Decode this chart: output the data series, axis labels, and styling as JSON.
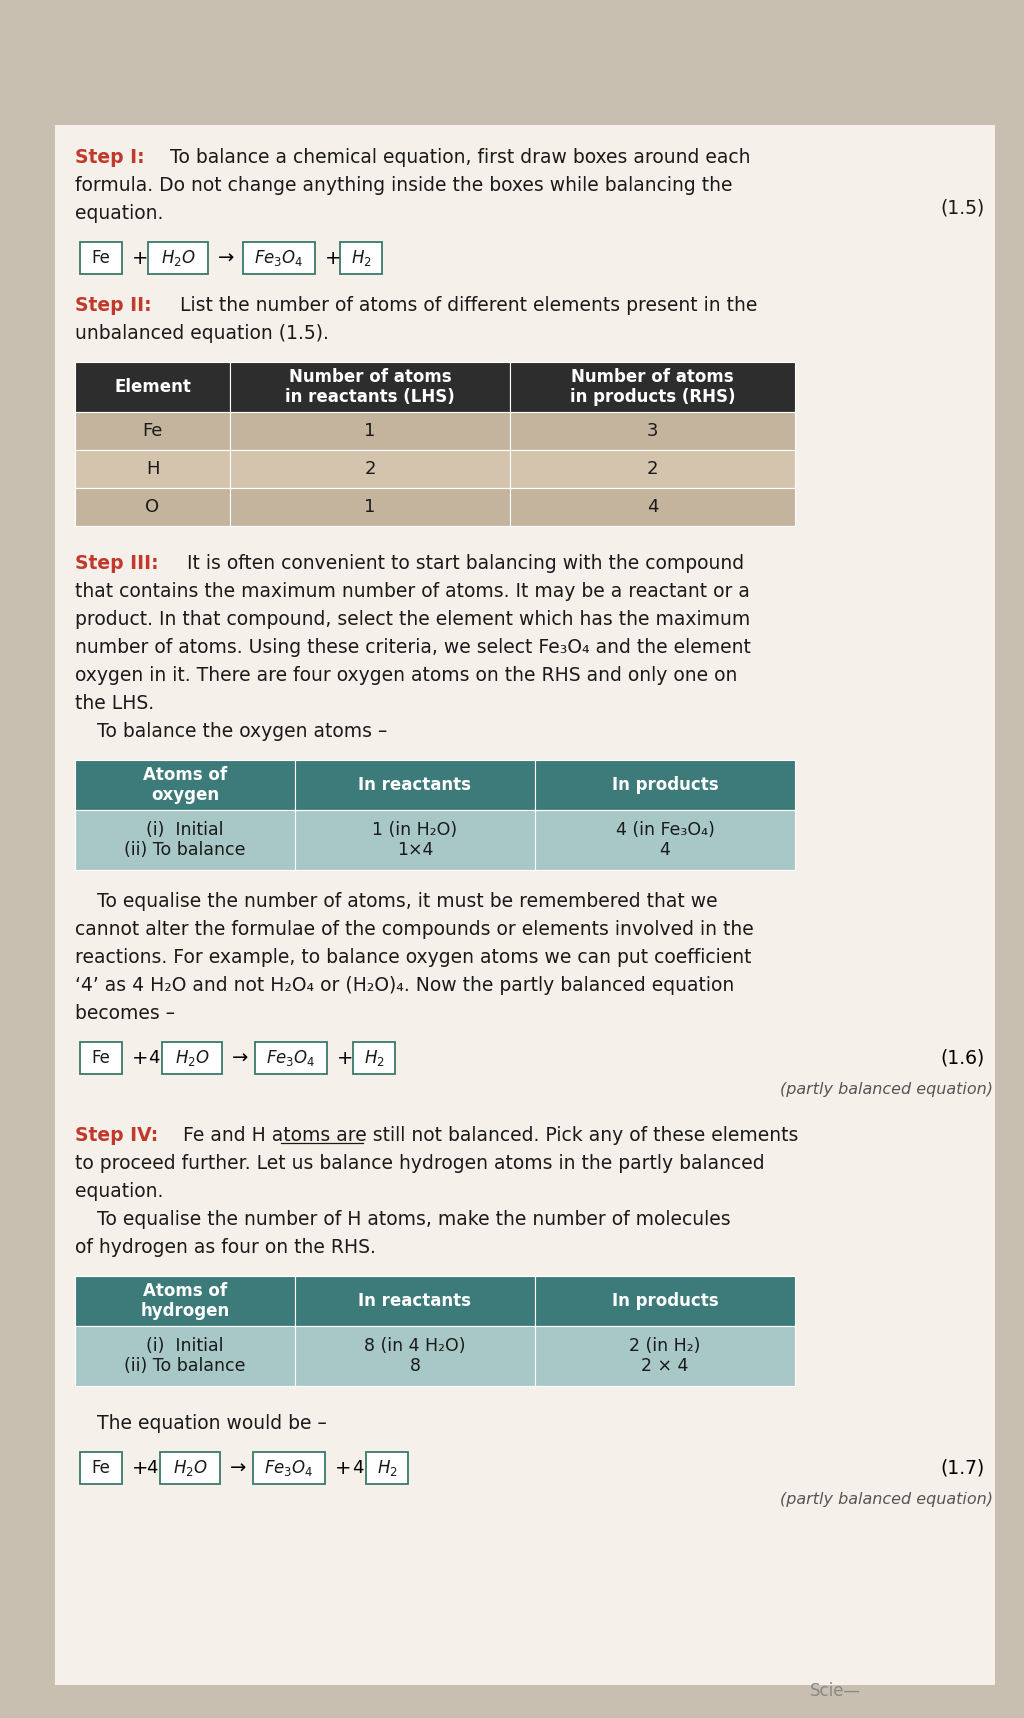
{
  "bg_color": "#c8bfb0",
  "page_bg": "#f5f0ea",
  "text_color": "#1a1a1a",
  "red_color": "#c0392b",
  "dark_table_header": "#2d2d2d",
  "dark_table_row_odd": "#c4b49e",
  "dark_table_row_even": "#d4c4ae",
  "teal_header": "#3d7a7a",
  "teal_row": "#a8c8c8",
  "table1_headers": [
    "Element",
    "Number of atoms\nin reactants (LHS)",
    "Number of atoms\nin products (RHS)"
  ],
  "table1_rows": [
    [
      "Fe",
      "1",
      "3"
    ],
    [
      "H",
      "2",
      "2"
    ],
    [
      "O",
      "1",
      "4"
    ]
  ],
  "table2_headers": [
    "Atoms of\noxygen",
    "In reactants",
    "In products"
  ],
  "table2_row": [
    "(i)  Initial\n(ii) To balance",
    "1 (in H₂O)\n1×4",
    "4 (in Fe₃O₄)\n4"
  ],
  "table3_headers": [
    "Atoms of\nhydrogen",
    "In reactants",
    "In products"
  ],
  "table3_row": [
    "(i)  Initial\n(ii) To balance",
    "8 (in 4 H₂O)\n8",
    "2 (in H₂)\n2 × 4"
  ]
}
